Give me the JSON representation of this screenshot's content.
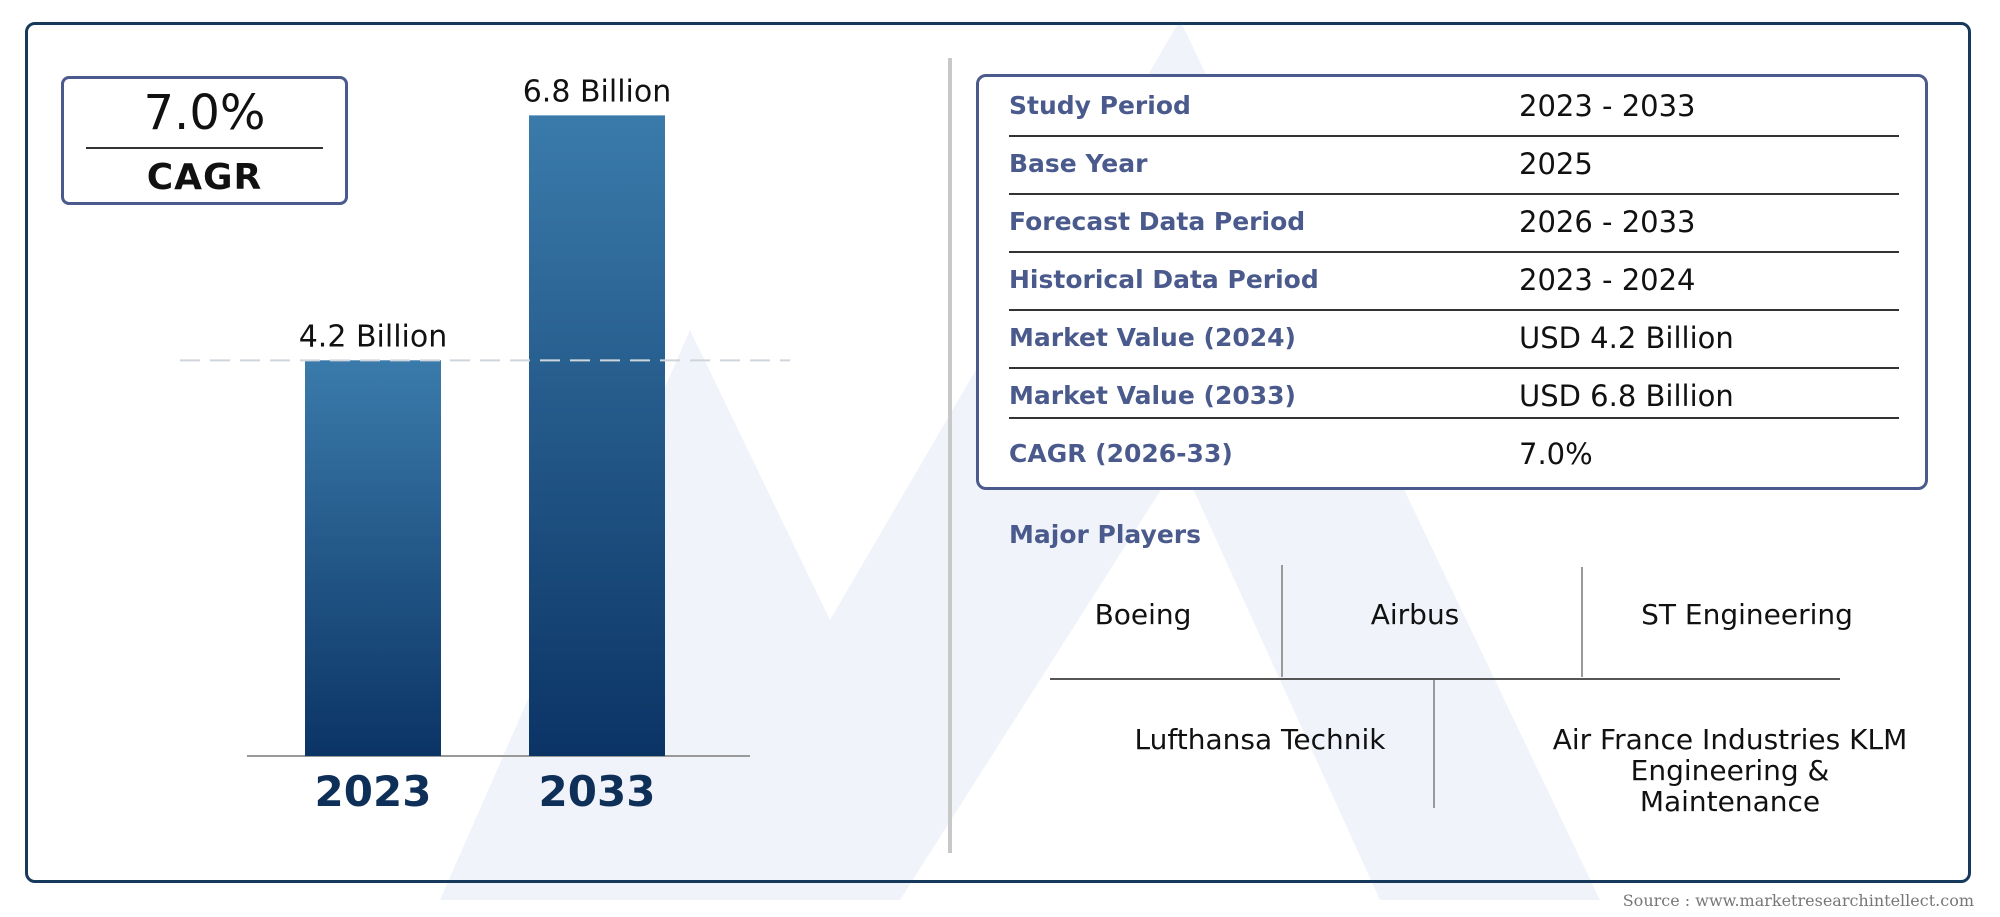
{
  "cagr_box": {
    "value": "7.0%",
    "label": "CAGR"
  },
  "chart_data": {
    "type": "bar",
    "categories": [
      "2023",
      "2033"
    ],
    "values": [
      4.2,
      6.8
    ],
    "data_labels": [
      "4.2 Billion",
      "6.8 Billion"
    ],
    "title": "",
    "xlabel": "",
    "ylabel": "",
    "ylim": [
      0,
      7.6
    ],
    "reference_line": 4.2,
    "grid": false,
    "colors": {
      "bar_top": "#3a7bab",
      "bar_bottom": "#0b3465",
      "category_text": "#0e2f57"
    }
  },
  "summary_table": [
    {
      "label": "Study Period",
      "value": "2023 - 2033"
    },
    {
      "label": "Base Year",
      "value": "2025"
    },
    {
      "label": "Forecast Data Period",
      "value": "2026 - 2033"
    },
    {
      "label": "Historical Data Period",
      "value": "2023 - 2024"
    },
    {
      "label": "Market Value (2024)",
      "value": "USD 4.2 Billion"
    },
    {
      "label": "Market Value (2033)",
      "value": "USD 6.8 Billion"
    },
    {
      "label": "CAGR (2026-33)",
      "value": "7.0%"
    }
  ],
  "major_players": {
    "title": "Major Players",
    "row1": [
      "Boeing",
      "Airbus",
      "ST Engineering"
    ],
    "row2": [
      "Lufthansa Technik",
      "Air France Industries KLM Engineering & Maintenance"
    ]
  },
  "source": "Source : www.marketresearchintellect.com",
  "colors": {
    "frame": "#173a5c",
    "accent": "#4a5a8c"
  }
}
